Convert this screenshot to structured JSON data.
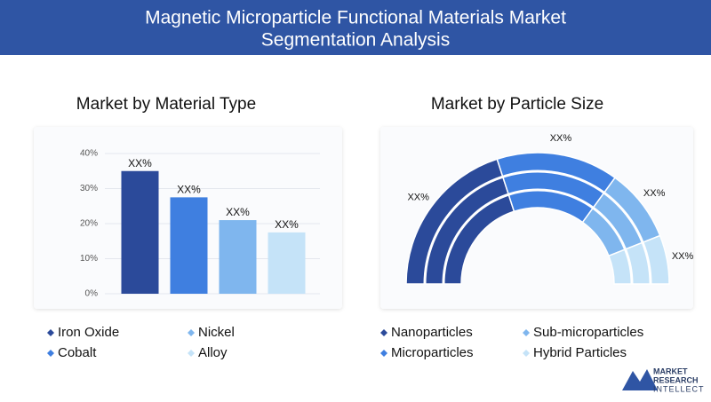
{
  "title": "Magnetic Microparticle Functional Materials Market Segmentation Analysis",
  "chart_data": [
    {
      "type": "bar",
      "title": "Market by Material Type",
      "categories": [
        "Iron Oxide",
        "Cobalt",
        "Nickel",
        "Alloy"
      ],
      "values": [
        35,
        27.5,
        21,
        17.5
      ],
      "value_labels": [
        "XX%",
        "XX%",
        "XX%",
        "XX%"
      ],
      "colors": [
        "#2b4a9a",
        "#3f7fe0",
        "#7fb6ee",
        "#c5e3f8"
      ],
      "ylim": [
        0,
        40
      ],
      "yticks": [
        {
          "value": 0,
          "label": "0%"
        },
        {
          "value": 10,
          "label": "10%"
        },
        {
          "value": 20,
          "label": "20%"
        },
        {
          "value": 30,
          "label": "30%"
        },
        {
          "value": 40,
          "label": "40%"
        }
      ]
    },
    {
      "type": "pie",
      "title": "Market by Particle Size",
      "categories": [
        "Nanoparticles",
        "Microparticles",
        "Sub-microparticles",
        "Hybrid Particles"
      ],
      "values": [
        40,
        30,
        18,
        12
      ],
      "value_labels": [
        "XX%",
        "XX%",
        "XX%",
        "XX%"
      ],
      "colors": [
        "#2b4a9a",
        "#3f7fe0",
        "#7fb6ee",
        "#c5e3f8"
      ]
    }
  ],
  "logo": [
    "MARKET",
    "RESEARCH",
    "INTELLECT"
  ]
}
